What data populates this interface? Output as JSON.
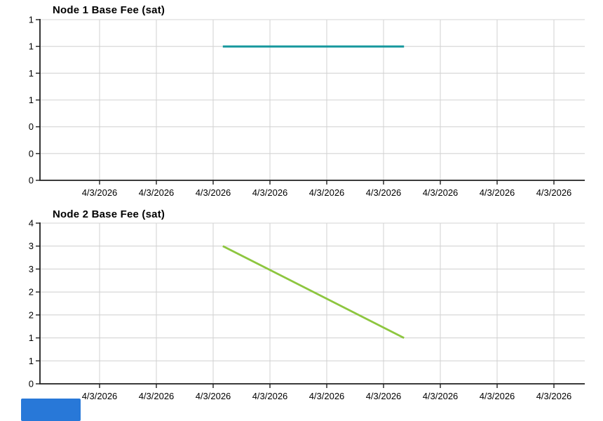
{
  "chart_data": [
    {
      "type": "line",
      "title": "Node 1 Base Fee (sat)",
      "grid": true,
      "legend": "none",
      "x_axis": {
        "tick_labels": [
          "4/3/2026",
          "4/3/2026",
          "4/3/2026",
          "4/3/2026",
          "4/3/2026",
          "4/3/2026",
          "4/3/2026",
          "4/3/2026",
          "4/3/2026"
        ]
      },
      "y_axis": {
        "tick_labels": [
          "1",
          "1",
          "1",
          "1",
          "0",
          "0",
          "0"
        ],
        "min": 0,
        "max": 1.2
      },
      "series": [
        {
          "name": "Node 1 Base Fee",
          "color": "#17989E",
          "stroke_width": 3,
          "points": [
            {
              "x_tick_pos": 2.17,
              "value": 1
            },
            {
              "x_tick_pos": 5.36,
              "value": 1
            }
          ]
        }
      ]
    },
    {
      "type": "line",
      "title": "Node 2 Base Fee (sat)",
      "grid": true,
      "legend": "none",
      "x_axis": {
        "tick_labels": [
          "4/3/2026",
          "4/3/2026",
          "4/3/2026",
          "4/3/2026",
          "4/3/2026",
          "4/3/2026",
          "4/3/2026",
          "4/3/2026",
          "4/3/2026"
        ]
      },
      "y_axis": {
        "tick_labels": [
          "4",
          "3",
          "3",
          "2",
          "2",
          "1",
          "1",
          "0"
        ],
        "min": 0,
        "max": 3.5
      },
      "series": [
        {
          "name": "Node 2 Base Fee",
          "color": "#8DC63F",
          "stroke_width": 2.8,
          "points": [
            {
              "x_tick_pos": 2.17,
              "value": 3
            },
            {
              "x_tick_pos": 5.36,
              "value": 1
            }
          ]
        }
      ]
    }
  ],
  "footer": {
    "blue_box_color": "#2878D8"
  }
}
